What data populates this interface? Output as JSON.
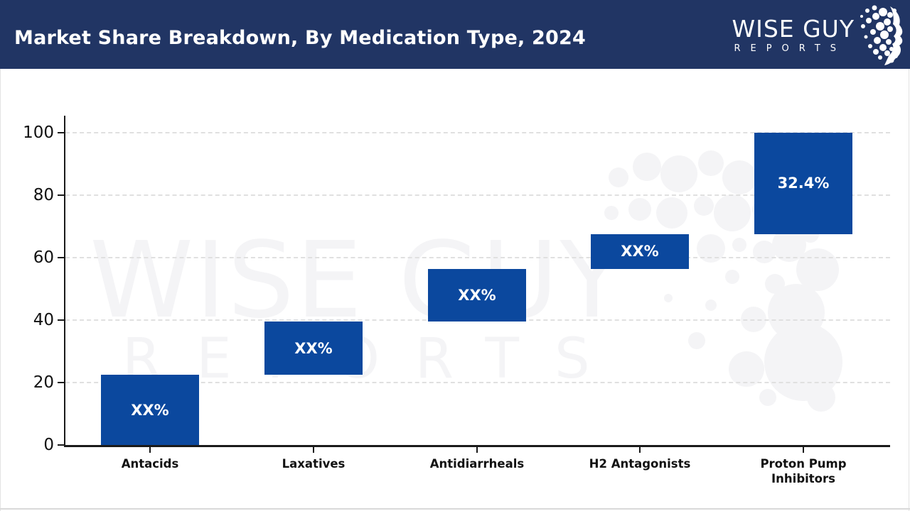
{
  "header": {
    "title": "Market Share Breakdown, By Medication Type, 2024",
    "logo": {
      "line1": "WISE GUY",
      "line2": "REPORTS"
    }
  },
  "watermark": {
    "line1": "WISE GUY",
    "line2": "REPORTS"
  },
  "chart_data": {
    "type": "bar",
    "subtype": "waterfall",
    "title": "Market Share Breakdown, By Medication Type, 2024",
    "categories": [
      "Antacids",
      "Laxatives",
      "Antidiarrheals",
      "H2 Antagonists",
      "Proton Pump\nInhibitors"
    ],
    "series": [
      {
        "name": "Market share (%)",
        "segments": [
          {
            "category": "Antacids",
            "label": "XX%",
            "start": 0,
            "end": 22.5
          },
          {
            "category": "Laxatives",
            "label": "XX%",
            "start": 22.5,
            "end": 39.5
          },
          {
            "category": "Antidiarrheals",
            "label": "XX%",
            "start": 39.5,
            "end": 56.4
          },
          {
            "category": "H2 Antagonists",
            "label": "XX%",
            "start": 56.4,
            "end": 67.6
          },
          {
            "category": "Proton Pump Inhibitors",
            "label": "32.4%",
            "start": 67.6,
            "end": 100
          }
        ]
      }
    ],
    "yticks": [
      0,
      20,
      40,
      60,
      80,
      100
    ],
    "ylim": [
      0,
      100
    ],
    "xlabel": "",
    "ylabel": "",
    "legend": "none",
    "grid": "horizontal-dashed",
    "colors": {
      "bar": "#0b489e",
      "header_bg": "#213564",
      "grid": "#e0e0e0",
      "axis": "#1a1a1a",
      "bar_label": "#ffffff",
      "watermark": "#f4f4f6",
      "title_text": "#ffffff"
    }
  }
}
